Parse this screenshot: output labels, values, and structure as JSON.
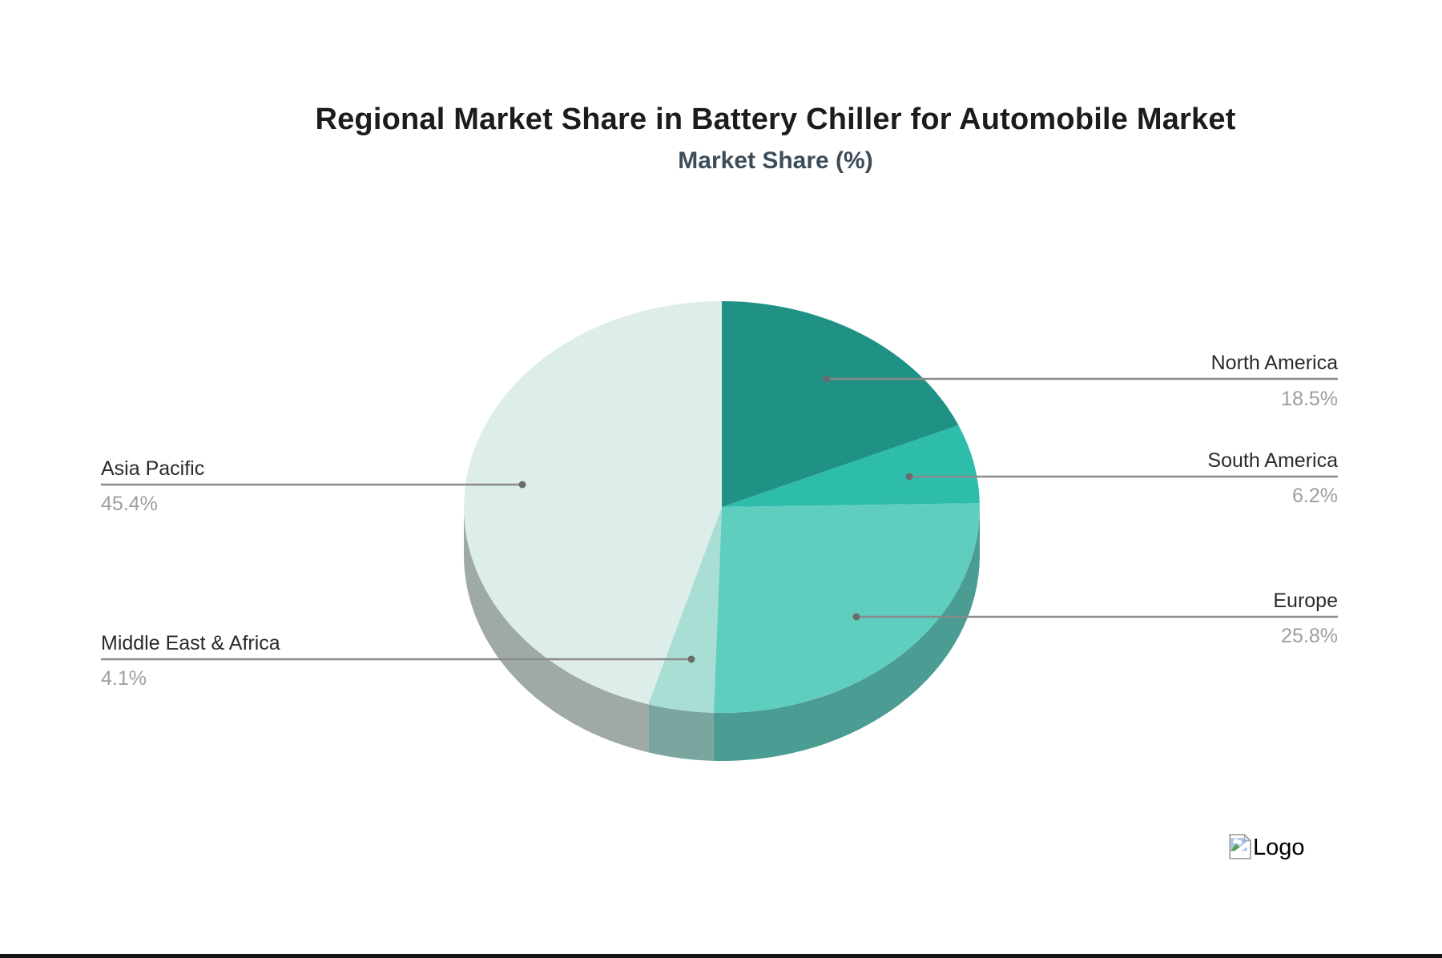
{
  "chart_data": {
    "type": "pie",
    "title": "Regional Market Share in Battery Chiller for Automobile Market",
    "subtitle": "Market Share (%)",
    "unit": "%",
    "start_angle_deg": 0,
    "direction": "clockwise",
    "style_3d": true,
    "legend": "none",
    "slices": [
      {
        "label": "North America",
        "value": 18.5,
        "display": "18.5%",
        "color": "#1f9285",
        "side_color": null
      },
      {
        "label": "South America",
        "value": 6.2,
        "display": "6.2%",
        "color": "#2ebcab",
        "side_color": null
      },
      {
        "label": "Europe",
        "value": 25.8,
        "display": "25.8%",
        "color": "#60cebf",
        "side_color": "#4b9c92"
      },
      {
        "label": "Middle East & Africa",
        "value": 4.1,
        "display": "4.1%",
        "color": "#a9ded4",
        "side_color": "#7aa49e"
      },
      {
        "label": "Asia Pacific",
        "value": 45.4,
        "display": "45.4%",
        "color": "#dcedea",
        "side_color": "#9fa9a6"
      }
    ]
  },
  "logo": {
    "alt": "Logo"
  },
  "colors": {
    "background": "#ffffff",
    "title": "#1c1c1c",
    "subtitle": "#3d4c59",
    "label_text": "#2a2a2a",
    "value_text": "#9e9e9e",
    "connector_line": "#8a8a8a",
    "connector_dot": "#6b6b6b",
    "bottom_edge": "#141414"
  }
}
